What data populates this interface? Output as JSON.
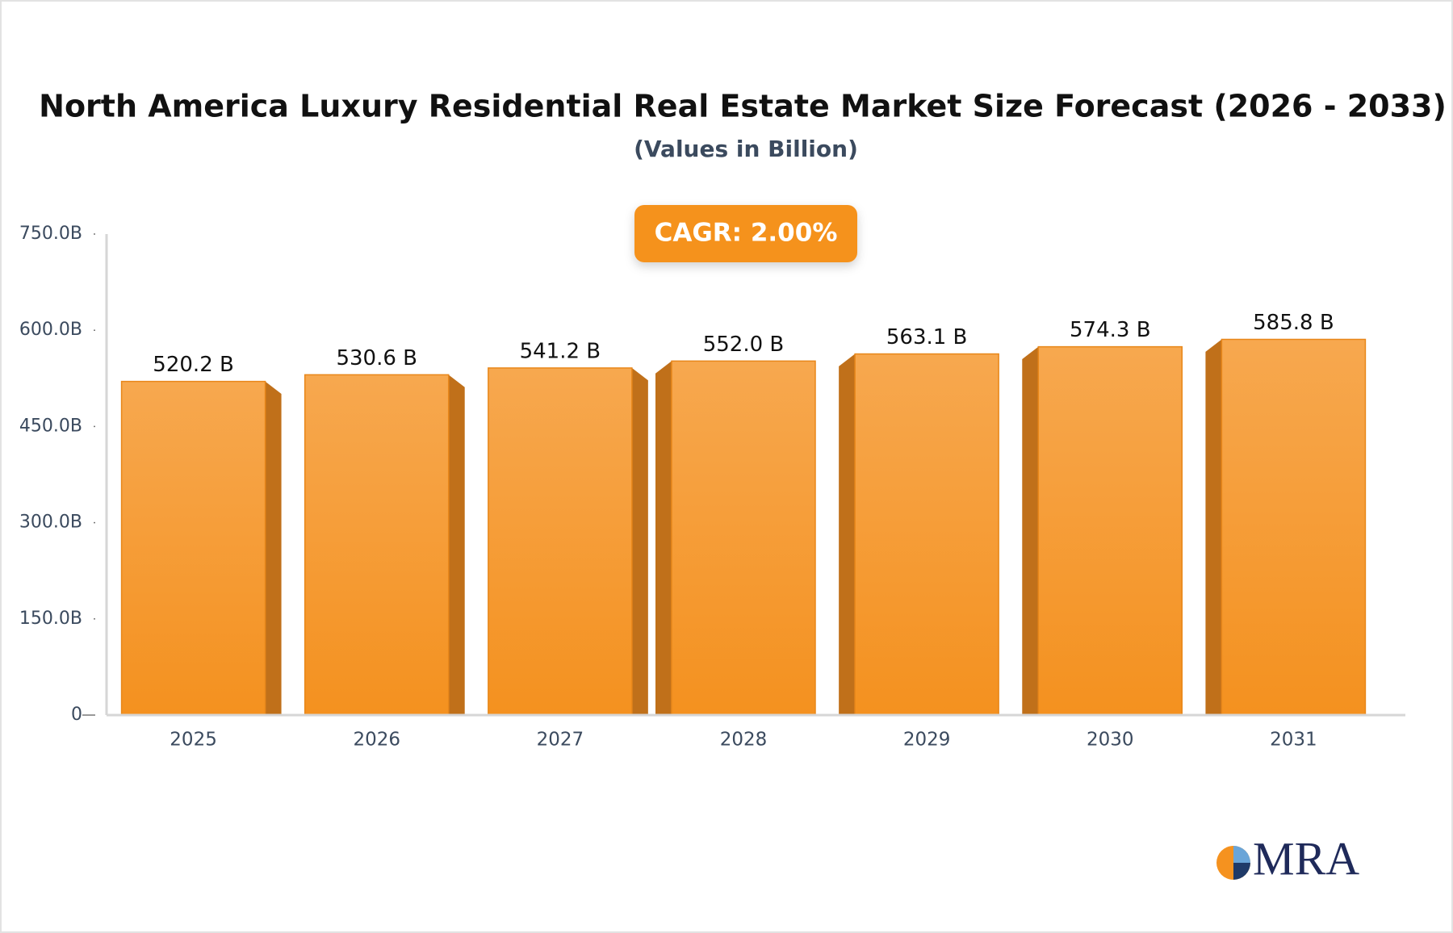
{
  "chart_data": {
    "type": "bar3d",
    "title": "North America Luxury Residential Real Estate Market Size Forecast (2026 - 2033)",
    "subtitle": "(Values in Billion)",
    "annotation": "CAGR: 2.00%",
    "logo_text": "MRA",
    "categories": [
      "2025",
      "2026",
      "2027",
      "2028",
      "2029",
      "2030",
      "2031"
    ],
    "values": [
      520.2,
      530.6,
      541.2,
      552.0,
      563.1,
      574.3,
      585.8
    ],
    "value_labels": [
      "520.2 B",
      "530.6 B",
      "541.2 B",
      "552.0 B",
      "563.1 B",
      "574.3 B",
      "585.8 B"
    ],
    "color": "#f5992e",
    "ylim": [
      0,
      750
    ],
    "yticks": [
      0,
      {
        "value": 150,
        "label": "150.0B"
      },
      {
        "value": 300,
        "label": "300.0B"
      },
      {
        "value": 450,
        "label": "450.0B"
      },
      {
        "value": 600,
        "label": "600.0B"
      },
      {
        "value": 750,
        "label": "750.0B"
      }
    ],
    "grid": false
  }
}
